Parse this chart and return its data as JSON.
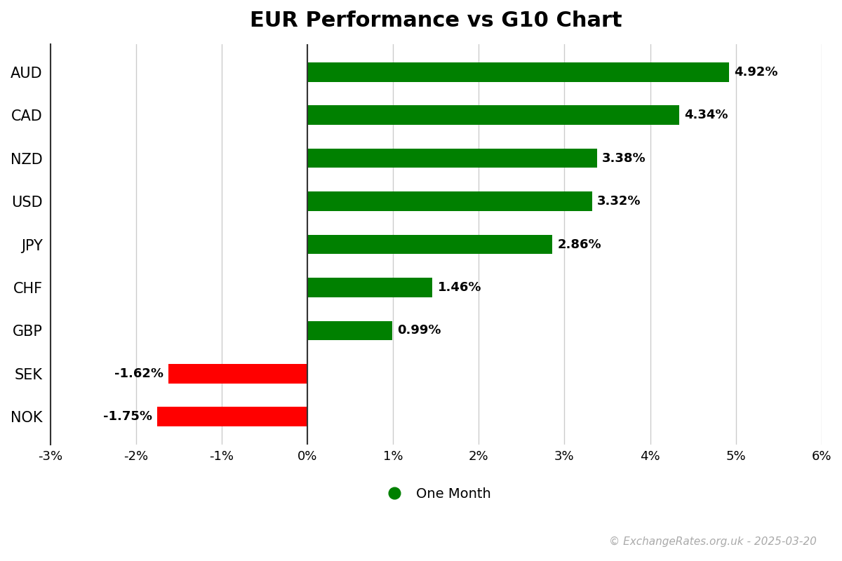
{
  "title": "EUR Performance vs G10 Chart",
  "currencies": [
    "AUD",
    "CAD",
    "NZD",
    "USD",
    "JPY",
    "CHF",
    "GBP",
    "SEK",
    "NOK"
  ],
  "values": [
    4.92,
    4.34,
    3.38,
    3.32,
    2.86,
    1.46,
    0.99,
    -1.62,
    -1.75
  ],
  "labels": [
    "4.92%",
    "4.34%",
    "3.38%",
    "3.32%",
    "2.86%",
    "1.46%",
    "0.99%",
    "-1.62%",
    "-1.75%"
  ],
  "positive_color": "#008000",
  "negative_color": "#ff0000",
  "background_color": "#ffffff",
  "grid_color": "#cccccc",
  "xlim": [
    -3,
    6
  ],
  "xticks": [
    -3,
    -2,
    -1,
    0,
    1,
    2,
    3,
    4,
    5,
    6
  ],
  "xtick_labels": [
    "-3%",
    "-2%",
    "-1%",
    "0%",
    "1%",
    "2%",
    "3%",
    "4%",
    "5%",
    "6%"
  ],
  "title_fontsize": 22,
  "tick_fontsize": 13,
  "label_fontsize": 13,
  "bar_height": 0.45,
  "legend_label": "One Month",
  "legend_color": "#008000",
  "watermark": "© ExchangeRates.org.uk - 2025-03-20",
  "watermark_color": "#aaaaaa",
  "watermark_fontsize": 11
}
